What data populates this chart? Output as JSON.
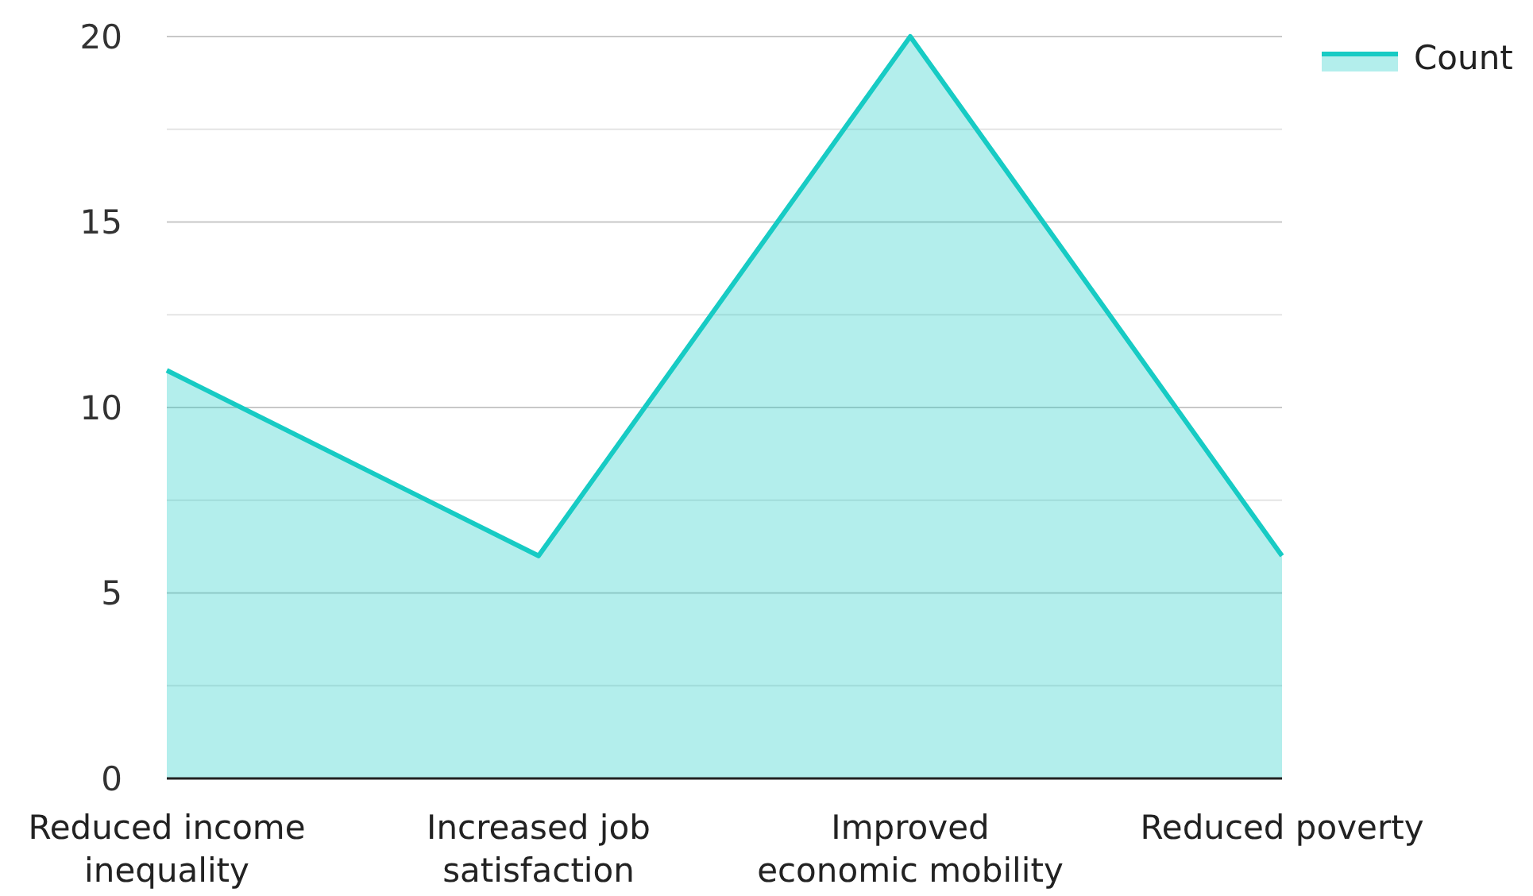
{
  "chart_data": {
    "type": "area",
    "categories": [
      "Reduced income inequality",
      "Increased job satisfaction",
      "Improved economic mobility",
      "Reduced poverty"
    ],
    "series": [
      {
        "name": "Count",
        "color": "#17cbc4",
        "values": [
          11,
          6,
          20,
          6
        ]
      }
    ],
    "ylim": [
      0,
      20
    ],
    "yticks": [
      0,
      {
        "value": 2.5,
        "label": null
      },
      5,
      {
        "value": 7.5,
        "label": null
      },
      10,
      {
        "value": 12.5,
        "label": null
      },
      15,
      {
        "value": 17.5,
        "label": null
      },
      20
    ],
    "grid": "y",
    "legend": "top right",
    "marker": "none",
    "line_style": "solid"
  }
}
